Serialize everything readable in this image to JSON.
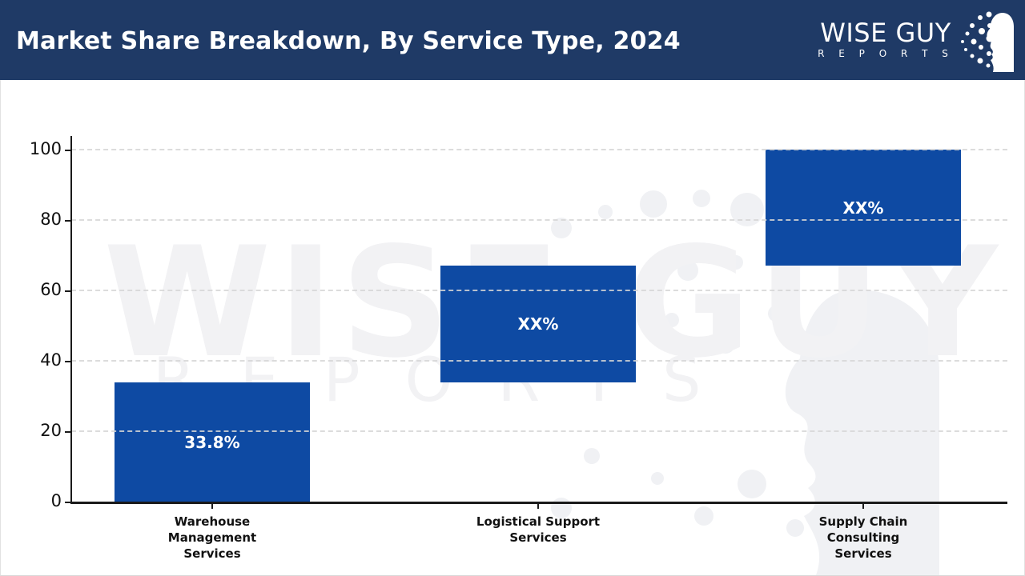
{
  "header": {
    "title": "Market Share Breakdown, By Service Type, 2024",
    "bg_color": "#1f3a66",
    "logo": {
      "name": "WISE GUY",
      "sub": "R E P O R T S"
    }
  },
  "watermark": {
    "line1": "WISE GUY",
    "line2": "REPORTS"
  },
  "chart_data": {
    "type": "bar",
    "subtype": "waterfall",
    "title": "Market Share Breakdown, By Service Type, 2024",
    "categories": [
      "Warehouse Management Services",
      "Logistical Support Services",
      "Supply Chain Consulting Services"
    ],
    "category_label_lines": [
      [
        "Warehouse",
        "Management",
        "Services"
      ],
      [
        "Logistical Support",
        "Services"
      ],
      [
        "Supply Chain",
        "Consulting",
        "Services"
      ]
    ],
    "segments": [
      {
        "category": "Warehouse Management Services",
        "start": 0,
        "end": 33.8,
        "label": "33.8%"
      },
      {
        "category": "Logistical Support Services",
        "start": 33.8,
        "end": 67,
        "label": "XX%"
      },
      {
        "category": "Supply Chain Consulting Services",
        "start": 67,
        "end": 100,
        "label": "XX%"
      }
    ],
    "ylim": [
      0,
      100
    ],
    "yticks": [
      0,
      20,
      40,
      60,
      80,
      100
    ],
    "xlabel": "",
    "ylabel": "",
    "grid": "horizontal-dashed-over-bars",
    "legend": "none",
    "colors": {
      "bar": "#0e4aa3",
      "bar_label": "#ffffff",
      "axis": "#1a1a1a",
      "gridline": "#d6d6d6",
      "tick_label": "#111111",
      "watermark": "#f2f2f4"
    }
  }
}
